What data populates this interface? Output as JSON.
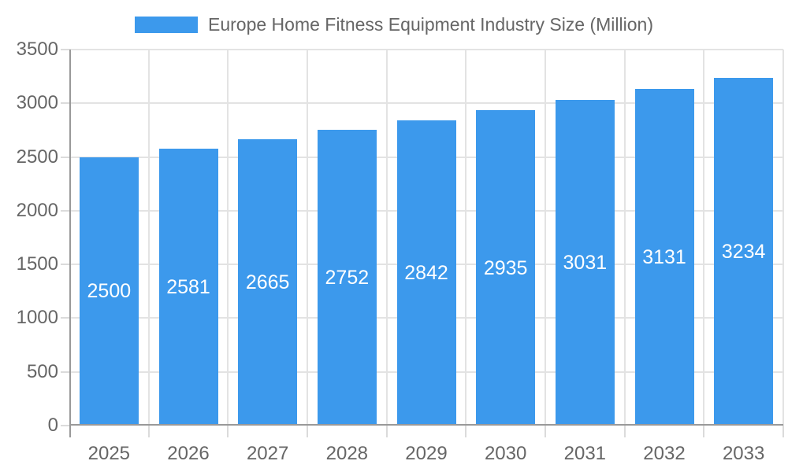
{
  "legend": {
    "label": "Europe Home Fitness Equipment Industry Size (Million)"
  },
  "chart_data": {
    "type": "bar",
    "title": "Europe Home Fitness Equipment Industry Size (Million)",
    "legend_position": "top-center",
    "categories": [
      "2025",
      "2026",
      "2027",
      "2028",
      "2029",
      "2030",
      "2031",
      "2032",
      "2033"
    ],
    "series": [
      {
        "name": "Europe Home Fitness Equipment Industry Size (Million)",
        "values": [
          2500,
          2581,
          2665,
          2752,
          2842,
          2935,
          3031,
          3131,
          3234
        ]
      }
    ],
    "bar_value_labels_visible": true,
    "xlabel": "",
    "ylabel": "",
    "ylim": [
      0,
      3500
    ],
    "yticks": [
      0,
      500,
      1000,
      1500,
      2000,
      2500,
      3000,
      3500
    ],
    "grid": true,
    "colors": {
      "bar": "#3C99EC",
      "bar_value_label": "#FFFFFF",
      "text": "#666666",
      "grid": "#E3E3E3",
      "axis": "#999999",
      "tick": "#DBDBDB"
    }
  }
}
